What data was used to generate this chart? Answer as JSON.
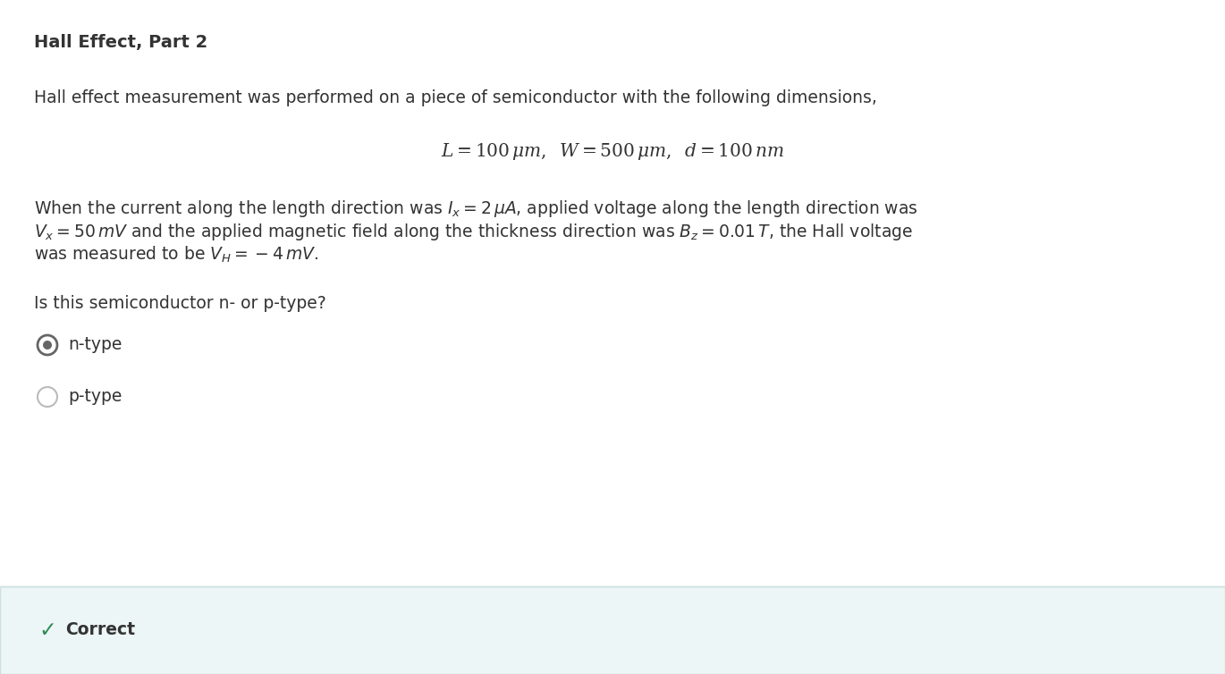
{
  "title": "Hall Effect, Part 2",
  "title_fontsize": 14,
  "bg_color": "#ffffff",
  "footer_bg_color": "#eef7f7",
  "text_color": "#333333",
  "body_fontsize": 13.5,
  "intro_line": "Hall effect measurement was performed on a piece of semiconductor with the following dimensions,",
  "equation_line": "$L = 100\\,\\mu m,\\;\\; W = 500\\,\\mu m,\\;\\; d = 100\\,nm$",
  "para_line1": "When the current along the length direction was $I_x = 2\\,\\mu A$, applied voltage along the length direction was",
  "para_line2": "$V_x = 50\\,mV$ and the applied magnetic field along the thickness direction was $B_z = 0.01\\,T$, the Hall voltage",
  "para_line3": "was measured to be $V_H = -4\\,mV$.",
  "question": "Is this semiconductor n- or p-type?",
  "option1": "n-type",
  "option2": "p-type",
  "selected_color": "#666666",
  "unselected_color": "#bbbbbb",
  "correct_text": "Correct",
  "correct_color": "#2e8b57",
  "correct_bg": "#edf6f6",
  "correct_border": "#cce0e0"
}
